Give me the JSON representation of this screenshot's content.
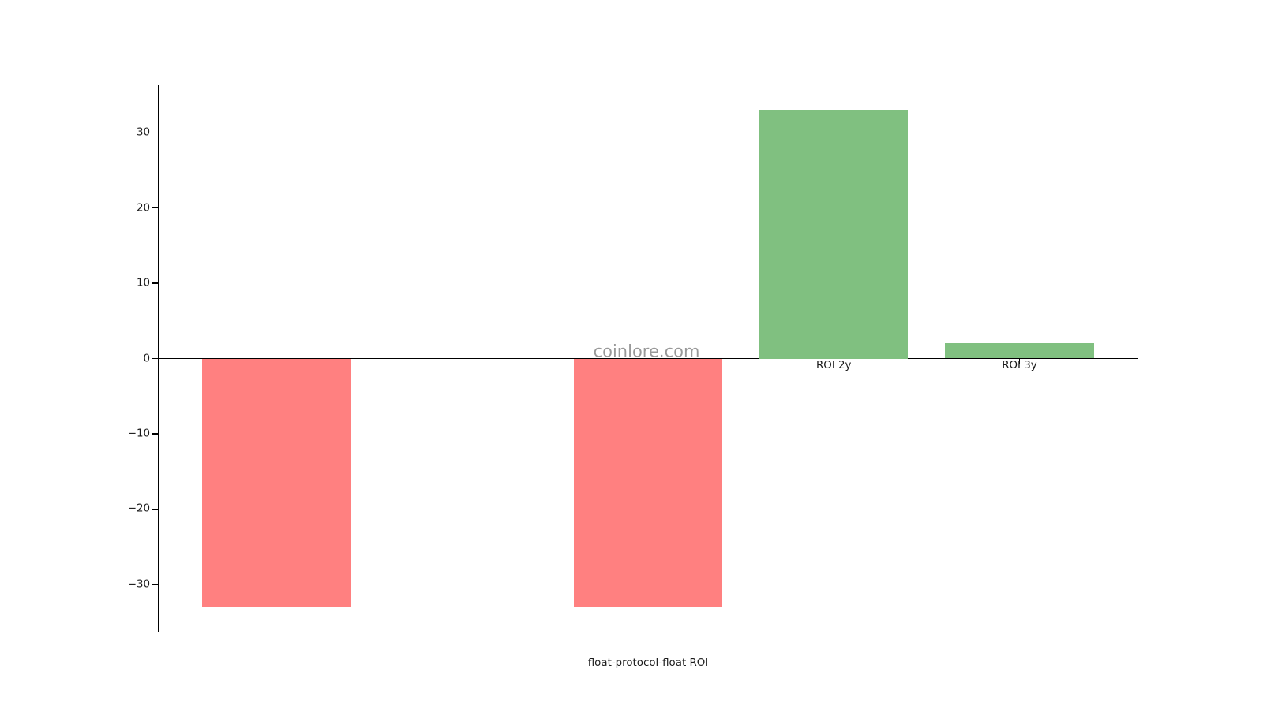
{
  "chart_data": {
    "type": "bar",
    "title": "float-protocol-float ROI",
    "watermark": "coinlore.com",
    "bars": [
      {
        "slot": 0,
        "label": "",
        "value": -33
      },
      {
        "slot": 2,
        "label": "",
        "value": -33
      },
      {
        "slot": 3,
        "label": "ROI 2y",
        "value": 33
      },
      {
        "slot": 4,
        "label": "ROI 3y",
        "value": 2
      }
    ],
    "x_slot_count": 5,
    "xlim": [
      -0.64,
      4.64
    ],
    "ylim": [
      -36.3,
      36.3
    ],
    "yticks": [
      30,
      20,
      10,
      0,
      -10,
      -20,
      -30
    ],
    "grid": false,
    "legend": null,
    "colors": {
      "positive_bar": "#80c080",
      "negative_bar": "#ff8080",
      "axis": "#000000",
      "tick_label": "#1a1a1a",
      "watermark": "rgba(0,0,0,0.40)"
    }
  }
}
